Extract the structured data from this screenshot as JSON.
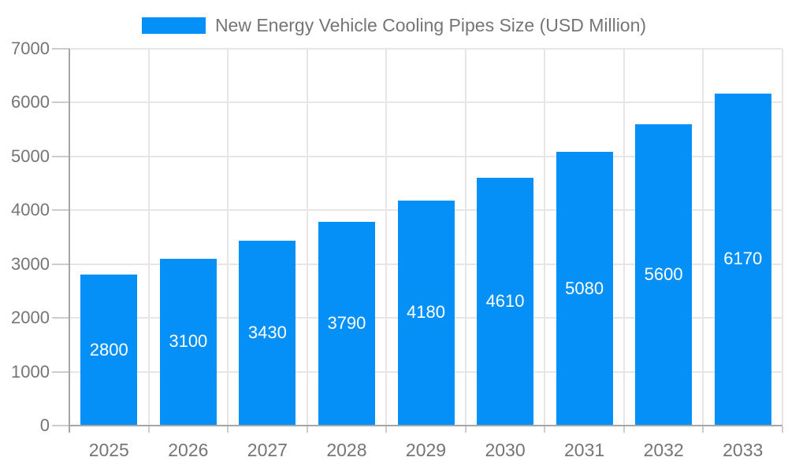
{
  "legend": {
    "label": "New Energy Vehicle Cooling Pipes Size (USD Million)"
  },
  "colors": {
    "bar": "#0590F8",
    "legend_text": "#757575",
    "axis_text": "#757575",
    "bar_label_text": "#ffffff",
    "axis_line": "#a6a6a6",
    "grid_line": "#e6e6e6",
    "tick_line": "#cccccc",
    "background": "#ffffff"
  },
  "chart_data": {
    "type": "bar",
    "categories": [
      "2025",
      "2026",
      "2027",
      "2028",
      "2029",
      "2030",
      "2031",
      "2032",
      "2033"
    ],
    "values": [
      2800,
      3100,
      3430,
      3790,
      4180,
      4610,
      5080,
      5600,
      6170
    ],
    "title": "New Energy Vehicle Cooling Pipes Size (USD Million)",
    "xlabel": "",
    "ylabel": "",
    "ylim": [
      0,
      7000
    ],
    "ytick_step": 1000,
    "ytick_labels": [
      "0",
      "1000",
      "2000",
      "3000",
      "4000",
      "5000",
      "6000",
      "7000"
    ],
    "grid": true,
    "legend_position": "top-center",
    "value_labels": "inside-center"
  }
}
